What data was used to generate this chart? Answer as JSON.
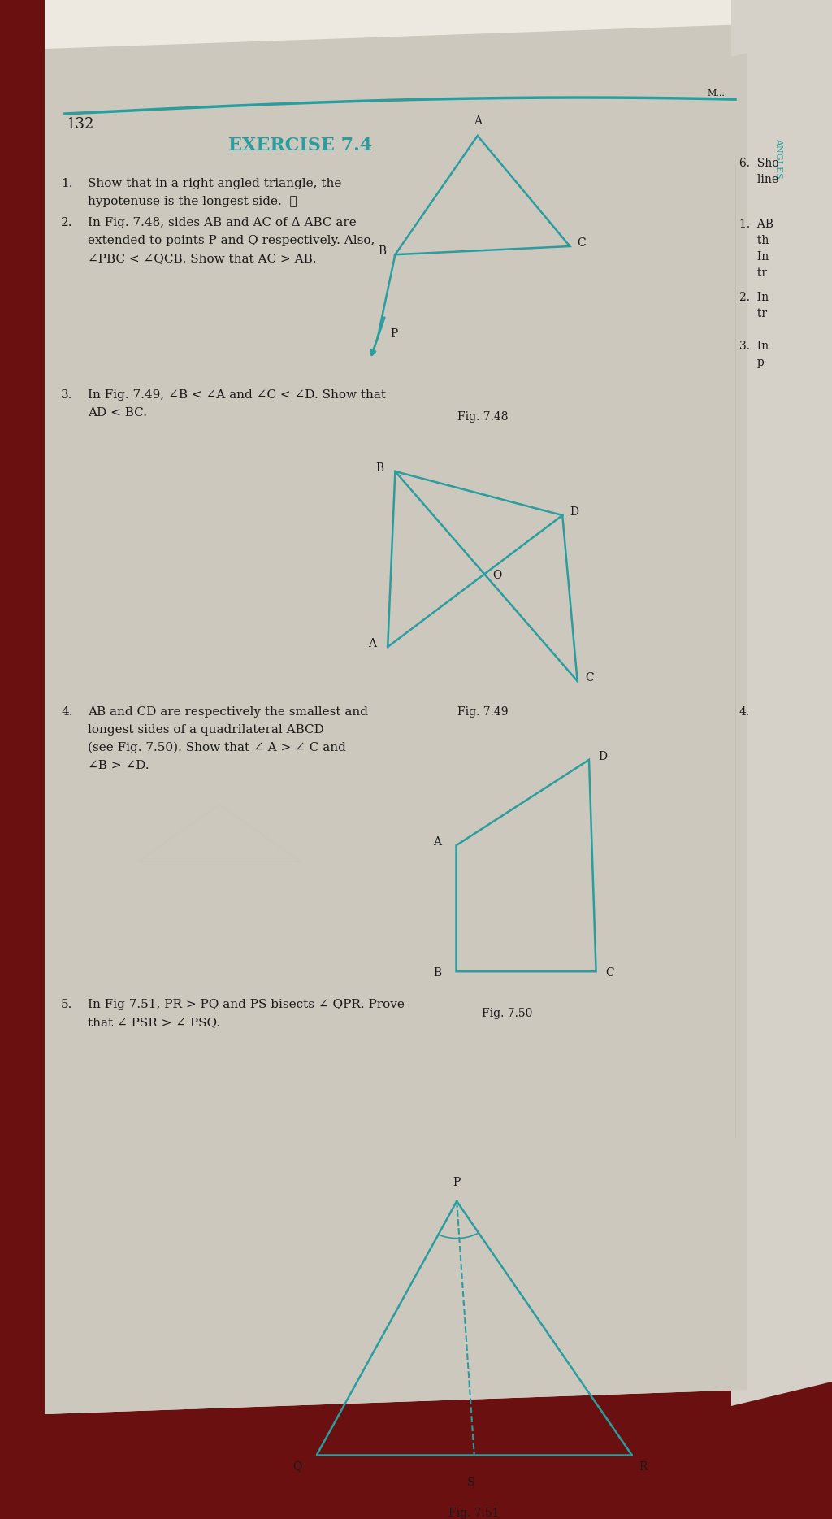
{
  "page_number": "132",
  "exercise_title": "EXERCISE 7.4",
  "teal_color": "#2a9d9e",
  "text_color": "#1a1a1a",
  "dark_red": "#6B1010",
  "page_color": "#ede9e0",
  "right_page_color": "#ddd9d0",
  "problems": [
    {
      "num": "1.",
      "line1": "Show that in a right angled triangle, the",
      "line2": "hypotenuse is the longest side."
    },
    {
      "num": "2.",
      "line1": "In Fig. 7.48, sides AB and AC of Δ ABC are",
      "line2": "extended to points P and Q respectively. Also,",
      "line3": "∠PBC < ∠QCB. Show that AC > AB."
    },
    {
      "num": "3.",
      "line1": "In Fig. 7.49, ∠B < ∠A and ∠C < ∠D. Show that",
      "line2": "AD < BC."
    },
    {
      "num": "4.",
      "line1": "AB and CD are respectively the smallest and",
      "line2": "longest sides of a quadrilateral ABCD",
      "line3": "(see Fig. 7.50). Show that ∠ A > ∠ C and",
      "line4": "∠B > ∠D."
    },
    {
      "num": "5.",
      "line1": "In Fig 7.51, PR > PQ and PS bisects ∠ QPR. Prove",
      "line2": "that ∠ PSR > ∠ PSQ."
    }
  ]
}
